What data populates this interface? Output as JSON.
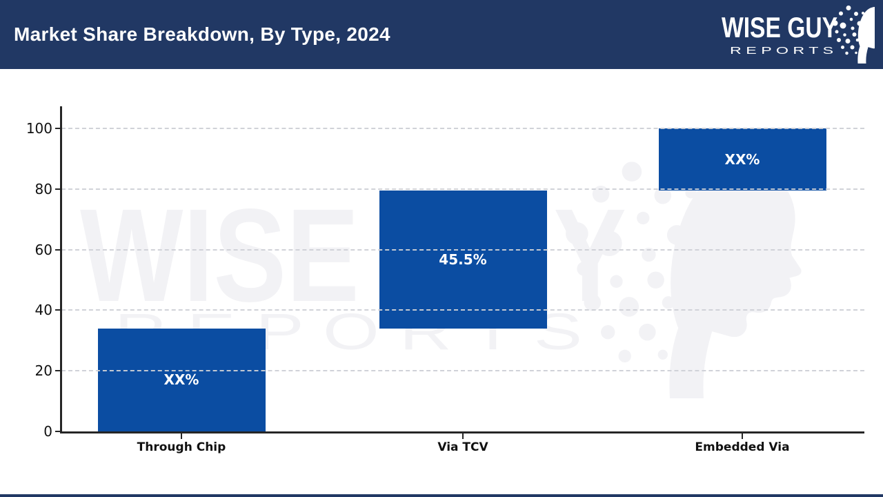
{
  "header": {
    "title": "Market Share Breakdown, By Type, 2024",
    "logo": {
      "name": "WISE GUY",
      "subname": "R E P O R T S"
    }
  },
  "watermark": {
    "line1": "WISE GUY",
    "line2": "R E P O R T S"
  },
  "colors": {
    "header_bg": "#213864",
    "footer_bg": "#213864",
    "bar_fill": "#0B4DA2",
    "bar_label_text": "#FFFFFF",
    "grid_line": "#D6D9DE",
    "axis_line": "#262626",
    "tick_text": "#111111",
    "watermark": "#F2F2F5"
  },
  "chart_data": {
    "type": "bar",
    "variant": "floating_segments_waterfall",
    "title": "Market Share Breakdown, By Type, 2024",
    "categories": [
      "Through Chip",
      "Via TCV",
      "Embedded Via"
    ],
    "segments": [
      {
        "category": "Through Chip",
        "start": 0,
        "end": 34,
        "label": "XX%"
      },
      {
        "category": "Via TCV",
        "start": 34,
        "end": 79.5,
        "label": "45.5%"
      },
      {
        "category": "Embedded Via",
        "start": 79.5,
        "end": 100,
        "label": "XX%"
      }
    ],
    "y_ticks": [
      0,
      20,
      40,
      60,
      80,
      100
    ],
    "ylim": [
      0,
      107
    ],
    "xlabel": "",
    "ylabel": "",
    "grid": "dashed-horizontal",
    "legend": "none"
  }
}
